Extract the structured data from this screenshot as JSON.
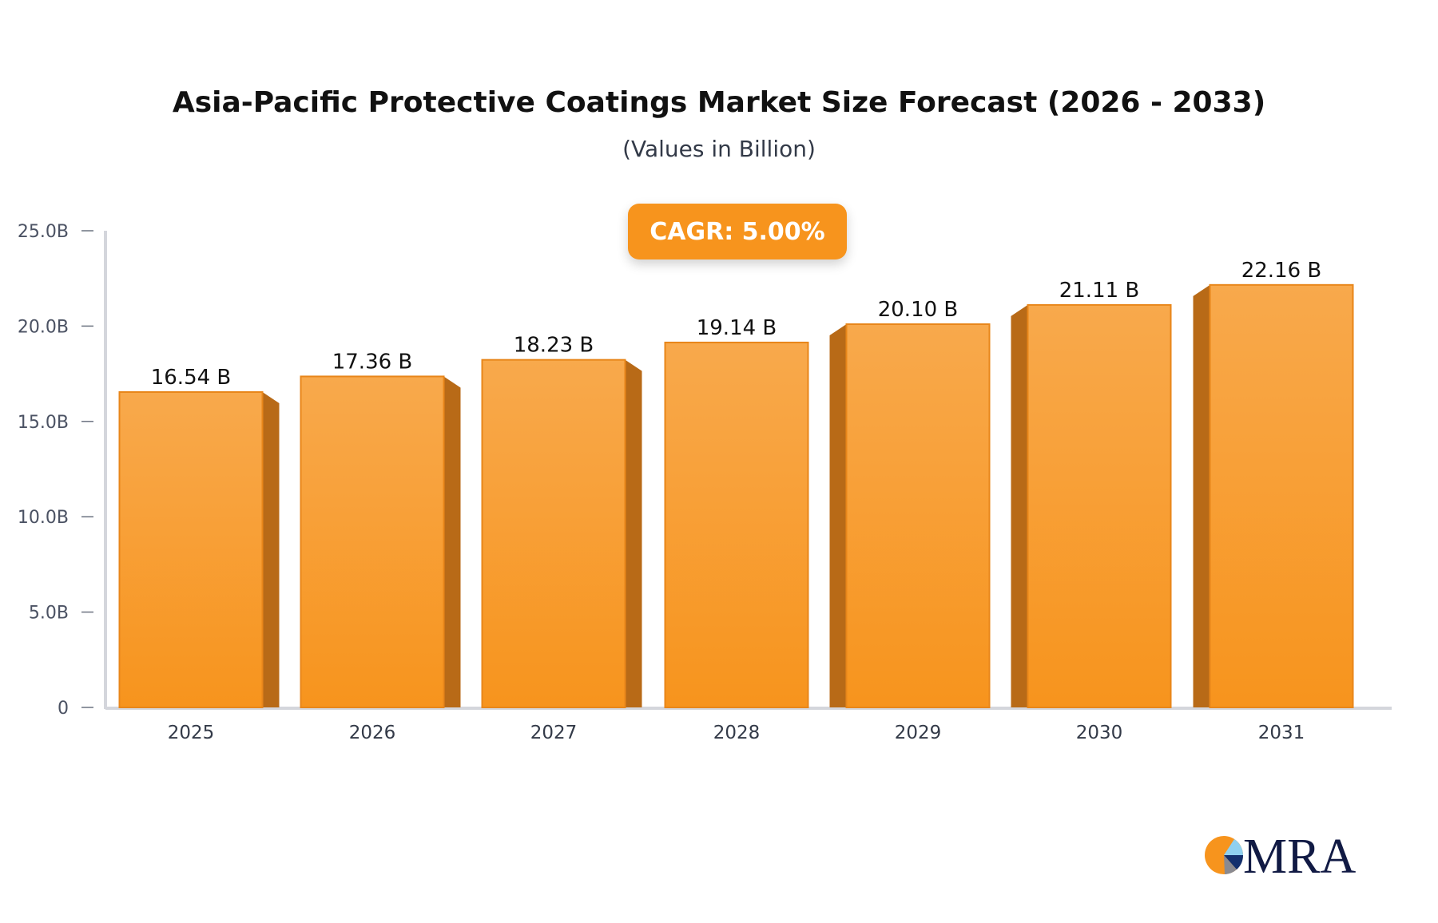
{
  "chart_data": {
    "type": "bar",
    "title": "Asia-Pacific Protective Coatings Market Size Forecast (2026 - 2033)",
    "subtitle": "(Values in Billion)",
    "annotation": "CAGR: 5.00%",
    "categories": [
      "2025",
      "2026",
      "2027",
      "2028",
      "2029",
      "2030",
      "2031"
    ],
    "values": [
      16.54,
      17.36,
      18.23,
      19.14,
      20.1,
      21.11,
      22.16
    ],
    "data_labels": [
      "16.54 B",
      "17.36 B",
      "18.23 B",
      "19.14 B",
      "20.10 B",
      "21.11 B",
      "22.16 B"
    ],
    "ylim": [
      0,
      25
    ],
    "yticks": [
      0,
      5,
      10,
      15,
      20,
      25
    ],
    "ytick_labels": [
      "0",
      "5.0B",
      "10.0B",
      "15.0B",
      "20.0B",
      "25.0B"
    ],
    "xlabel": "",
    "ylabel": "",
    "grid": false,
    "colors": {
      "bar": "#f7941d",
      "bar_top": "#f8a94c",
      "bar_side": "#b86a17",
      "axis": "#d4d6dc"
    }
  },
  "logo": {
    "text": "MRA"
  }
}
